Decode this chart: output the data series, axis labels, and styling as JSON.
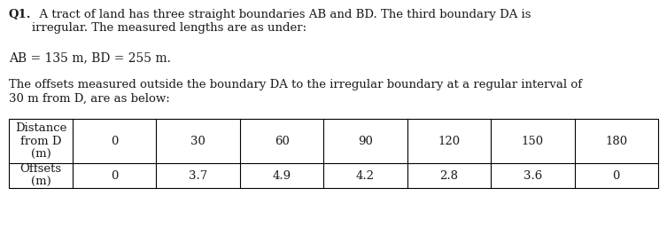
{
  "q1_bold": "Q1.",
  "q1_rest": "  A tract of land has three straight boundaries AB and BD. The third boundary DA is\nirregular. The measured lengths are as under:",
  "equation": "AB = 135 m, BD = 255 m.",
  "body": "The offsets measured outside the boundary DA to the irregular boundary at a regular interval of\n30 m from D, are as below:",
  "col0_header": "Distance\nfrom D\n(m)",
  "col0_offsets": "Offsets\n(m)",
  "dist_values": [
    "0",
    "30",
    "60",
    "90",
    "120",
    "150",
    "180"
  ],
  "offset_values": [
    "0",
    "3.7",
    "4.9",
    "4.2",
    "2.8",
    "3.6",
    "0"
  ],
  "bg_color": "#ffffff",
  "text_color": "#1a1a1a",
  "font_size": 9.5,
  "eq_font_size": 10.0,
  "table_font_size": 9.5,
  "fig_width": 7.53,
  "fig_height": 2.65,
  "dpi": 100
}
